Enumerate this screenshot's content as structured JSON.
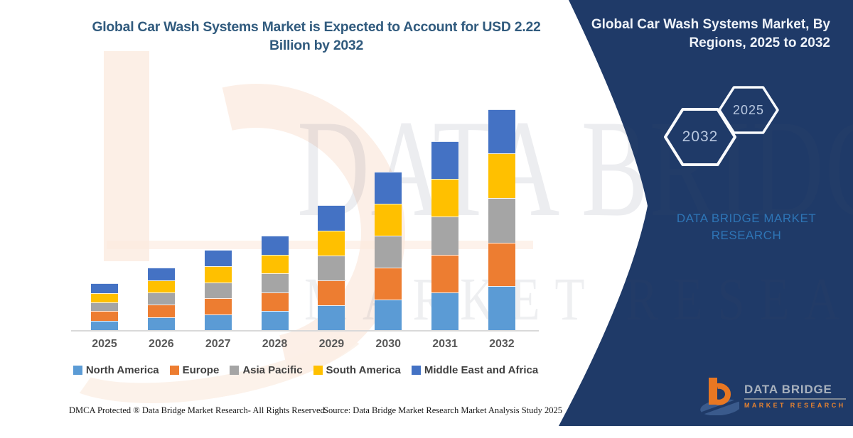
{
  "page": {
    "title": "Global Car Wash Systems Market is Expected to Account for USD 2.22 Billion by 2032",
    "background_color": "#FFFFFF",
    "title_color": "#315B7E"
  },
  "side_panel": {
    "heading": "Global Car Wash Systems Market, By Regions, 2025 to 2032",
    "bg_color": "#1F3A68",
    "hexagons": {
      "left_label": "2032",
      "right_label": "2025"
    },
    "brand_text": "DATA BRIDGE MARKET RESEARCH",
    "brand_text_color": "#2E75B6"
  },
  "chart_data": {
    "type": "bar",
    "stacked": true,
    "title": "Global Car Wash Systems Market is Expected to Account for USD 2.22 Billion by 2032",
    "unit": "USD Billion",
    "xlabel": "",
    "ylabel": "",
    "ylim": [
      0,
      2.4
    ],
    "grid": false,
    "legend_position": "bottom",
    "categories": [
      "2025",
      "2026",
      "2027",
      "2028",
      "2029",
      "2030",
      "2031",
      "2032"
    ],
    "series": [
      {
        "name": "North America",
        "color": "#5B9BD5",
        "values": [
          0.09,
          0.13,
          0.16,
          0.19,
          0.25,
          0.31,
          0.38,
          0.44
        ]
      },
      {
        "name": "Europe",
        "color": "#ED7D31",
        "values": [
          0.1,
          0.13,
          0.16,
          0.19,
          0.25,
          0.32,
          0.38,
          0.44
        ]
      },
      {
        "name": "Asia Pacific",
        "color": "#A5A5A5",
        "values": [
          0.09,
          0.12,
          0.16,
          0.19,
          0.25,
          0.32,
          0.38,
          0.45
        ]
      },
      {
        "name": "South America",
        "color": "#FFC000",
        "values": [
          0.09,
          0.12,
          0.16,
          0.19,
          0.25,
          0.32,
          0.38,
          0.45
        ]
      },
      {
        "name": "Middle East and Africa",
        "color": "#4472C4",
        "values": [
          0.1,
          0.13,
          0.17,
          0.19,
          0.26,
          0.32,
          0.38,
          0.44
        ]
      }
    ],
    "totals": [
      0.47,
      0.63,
      0.81,
      0.95,
      1.26,
      1.59,
      1.9,
      2.22
    ],
    "highlight_value": "USD 2.22 Billion",
    "highlight_year": "2032"
  },
  "watermarks": {
    "line1": "DATA BRIDGE",
    "line2": "MARKET RESEARCH"
  },
  "footer": {
    "left": "DMCA Protected ® Data Bridge Market Research-  All Rights Reserved.",
    "right": "Source: Data Bridge Market Research  Market Analysis Study 2025"
  },
  "logo": {
    "title": "DATA BRIDGE",
    "subtitle": "MARKET RESEARCH",
    "accent_color": "#E87722"
  }
}
